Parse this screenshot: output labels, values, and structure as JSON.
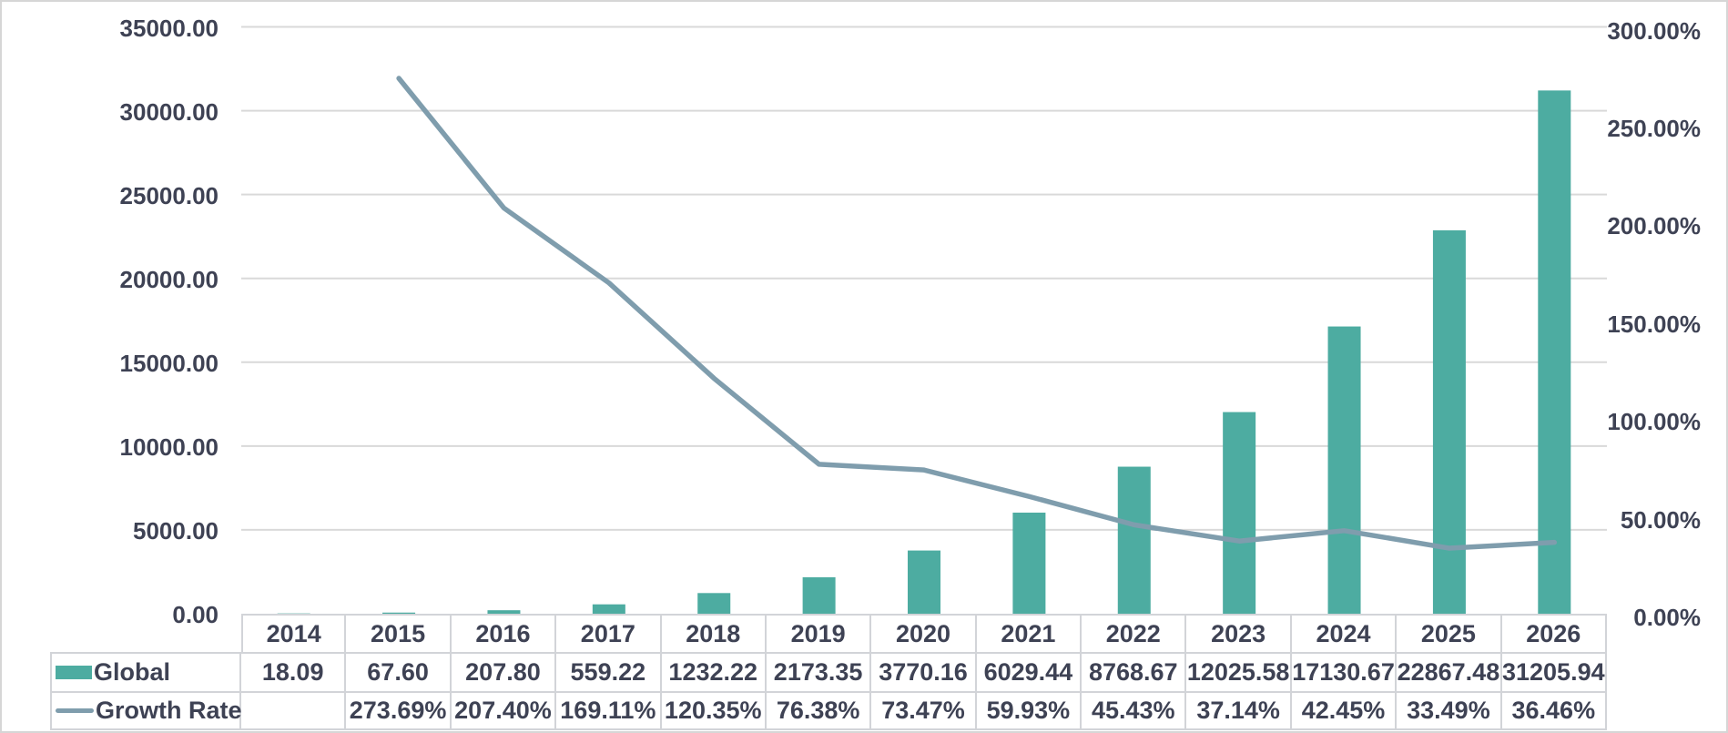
{
  "colors": {
    "bar": "#4DACA1",
    "line": "#7F9DAD",
    "grid": "#D9D9D9",
    "text": "#3E4254",
    "table_border": "#D2D4D8"
  },
  "chart_data": {
    "type": "bar+line combo",
    "categories": [
      "2014",
      "2015",
      "2016",
      "2017",
      "2018",
      "2019",
      "2020",
      "2021",
      "2022",
      "2023",
      "2024",
      "2025",
      "2026"
    ],
    "series": [
      {
        "name": "Global",
        "type": "bar",
        "axis": "left",
        "color": "#4DACA1",
        "values": [
          18.09,
          67.6,
          207.8,
          559.22,
          1232.22,
          2173.35,
          3770.16,
          6029.44,
          8768.67,
          12025.58,
          17130.67,
          22867.48,
          31205.94
        ]
      },
      {
        "name": "Growth Rate",
        "type": "line",
        "axis": "right",
        "color": "#7F9DAD",
        "values": [
          null,
          273.69,
          207.4,
          169.11,
          120.35,
          76.38,
          73.47,
          59.93,
          45.43,
          37.14,
          42.45,
          33.49,
          36.46
        ]
      }
    ],
    "left_axis": {
      "min": 0,
      "max": 35000,
      "step": 5000,
      "ticks": [
        "0.00",
        "5000.00",
        "10000.00",
        "15000.00",
        "20000.00",
        "25000.00",
        "30000.00",
        "35000.00"
      ]
    },
    "right_axis": {
      "min": 0,
      "max": 300,
      "step": 50,
      "ticks": [
        "0.00%",
        "50.00%",
        "100.00%",
        "150.00%",
        "200.00%",
        "250.00%",
        "300.00%"
      ]
    },
    "grid": "horizontal-on",
    "legend_position": "table-left"
  },
  "table": {
    "header_years": [
      "2014",
      "2015",
      "2016",
      "2017",
      "2018",
      "2019",
      "2020",
      "2021",
      "2022",
      "2023",
      "2024",
      "2025",
      "2026"
    ],
    "rows": [
      {
        "label": "Global",
        "swatch": "bar",
        "values": [
          "18.09",
          "67.60",
          "207.80",
          "559.22",
          "1232.22",
          "2173.35",
          "3770.16",
          "6029.44",
          "8768.67",
          "12025.58",
          "17130.67",
          "22867.48",
          "31205.94"
        ]
      },
      {
        "label": "Growth Rate",
        "swatch": "line",
        "values": [
          "",
          "273.69%",
          "207.40%",
          "169.11%",
          "120.35%",
          "76.38%",
          "73.47%",
          "59.93%",
          "45.43%",
          "37.14%",
          "42.45%",
          "33.49%",
          "36.46%"
        ]
      }
    ]
  }
}
